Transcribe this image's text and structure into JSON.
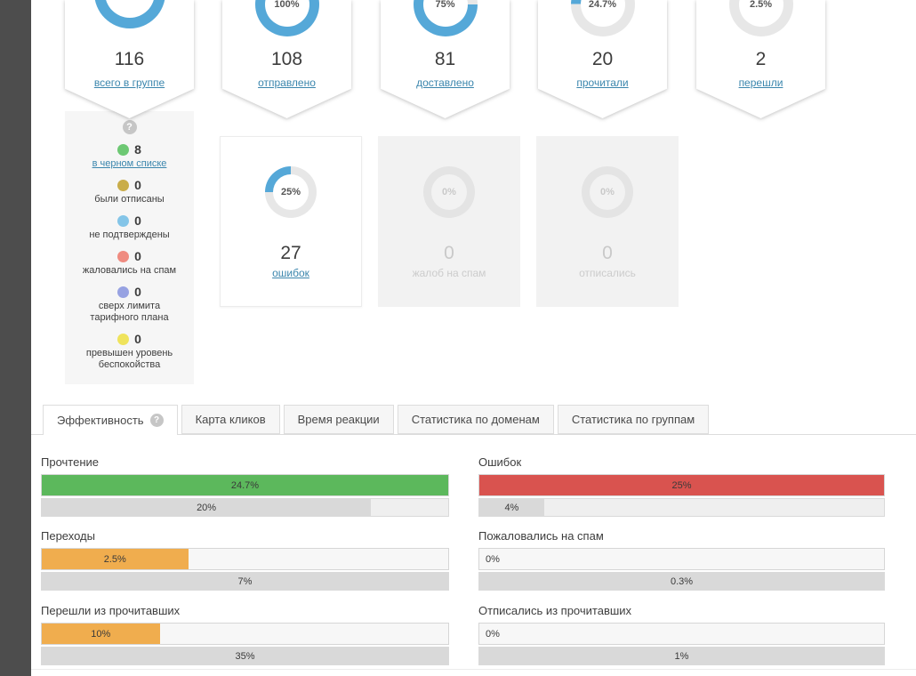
{
  "colors": {
    "donut": "#55a8d8",
    "donut_track": "#e7e7e7",
    "donut_track_disabled": "#e4e4e4"
  },
  "funnel_cards": [
    {
      "percent_label": "",
      "percent": 100,
      "value": "116",
      "label": "всего в группе"
    },
    {
      "percent_label": "100%",
      "percent": 100,
      "value": "108",
      "label": "отправлено"
    },
    {
      "percent_label": "75%",
      "percent": 75,
      "value": "81",
      "label": "доставлено"
    },
    {
      "percent_label": "24.7%",
      "percent": 24.7,
      "value": "20",
      "label": "прочитали"
    },
    {
      "percent_label": "2.5%",
      "percent": 2.5,
      "value": "2",
      "label": "перешли"
    }
  ],
  "group_breakdown": {
    "help": "?",
    "items": [
      {
        "value": "8",
        "label": "в черном списке",
        "color": "#6dc873"
      },
      {
        "value": "0",
        "label": "были отписаны",
        "color": "#c9ad4a"
      },
      {
        "value": "0",
        "label": "не подтверждены",
        "color": "#84c5e8"
      },
      {
        "value": "0",
        "label": "жаловались на спам",
        "color": "#ef8b80"
      },
      {
        "value": "0",
        "label": "сверх лимита тарифного плана",
        "color": "#97a2e2"
      },
      {
        "value": "0",
        "label": "превышен уровень беспокойства",
        "color": "#efe35c"
      }
    ]
  },
  "secondary_cards": [
    {
      "percent_label": "25%",
      "percent": 25,
      "value": "27",
      "label": "ошибок"
    },
    {
      "percent_label": "0%",
      "percent": 0,
      "value": "0",
      "label": "жалоб на спам"
    },
    {
      "percent_label": "0%",
      "percent": 0,
      "value": "0",
      "label": "отписались"
    }
  ],
  "tabs": [
    {
      "label": "Эффективность",
      "help": "?"
    },
    {
      "label": "Карта кликов"
    },
    {
      "label": "Время реакции"
    },
    {
      "label": "Статистика по доменам"
    },
    {
      "label": "Статистика по группам"
    }
  ],
  "effectiveness": {
    "left": [
      {
        "title": "Прочтение",
        "value_label": "24.7%",
        "value_fill": 100,
        "color": "#5cb85c",
        "avg_label": "20%",
        "avg_fill": 81
      },
      {
        "title": "Переходы",
        "value_label": "2.5%",
        "value_fill": 36,
        "color": "#f0ad4e",
        "avg_label": "7%",
        "avg_fill": 100
      },
      {
        "title": "Перешли из прочитавших",
        "value_label": "10%",
        "value_fill": 29,
        "color": "#f0ad4e",
        "avg_label": "35%",
        "avg_fill": 100
      }
    ],
    "right": [
      {
        "title": "Ошибок",
        "value_label": "25%",
        "value_fill": 100,
        "color": "#d9534f",
        "avg_label": "4%",
        "avg_fill": 16
      },
      {
        "title": "Пожаловались на спам",
        "value_label": "0%",
        "value_fill": 0,
        "color": "",
        "avg_label": "0.3%",
        "avg_fill": 100
      },
      {
        "title": "Отписались из прочитавших",
        "value_label": "0%",
        "value_fill": 0,
        "color": "",
        "avg_label": "1%",
        "avg_fill": 100
      }
    ]
  }
}
